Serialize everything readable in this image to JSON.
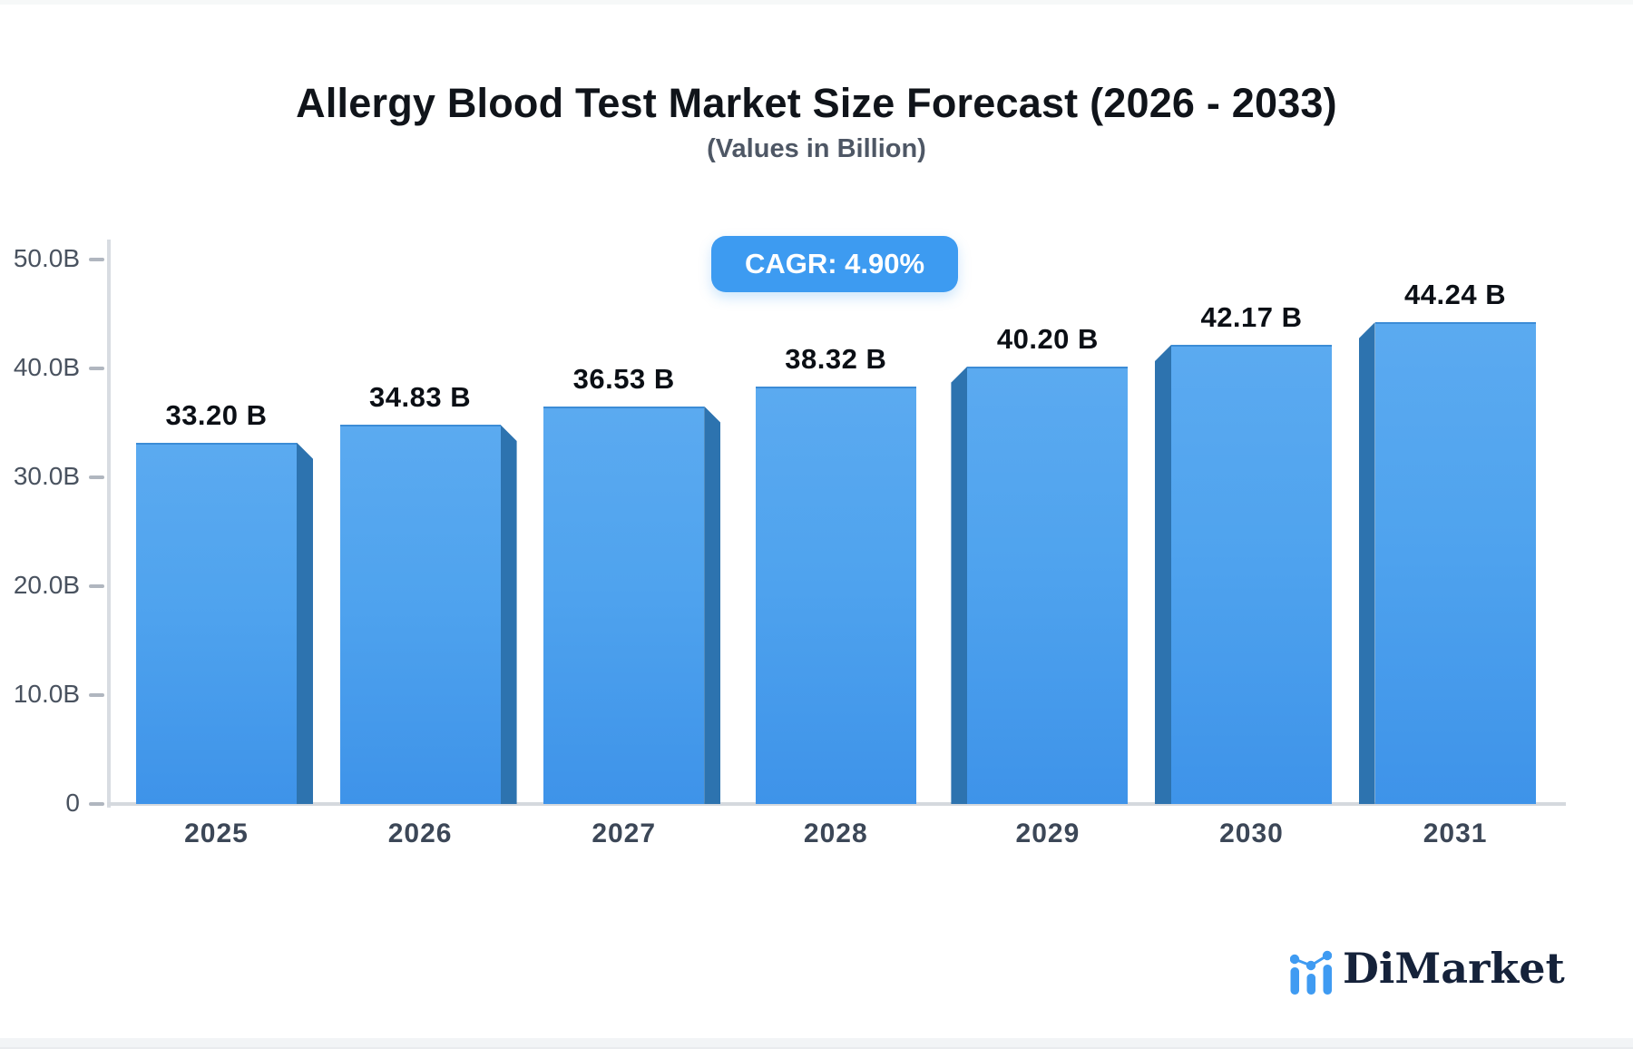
{
  "header": {
    "title": "Allergy Blood Test Market Size Forecast (2026 - 2033)",
    "subtitle": "(Values in Billion)",
    "cagr_badge": "CAGR: 4.90%"
  },
  "chart_data": {
    "type": "bar",
    "title": "Allergy Blood Test Market Size Forecast (2026 - 2033)",
    "subtitle": "(Values in Billion)",
    "annotation": "CAGR: 4.90%",
    "categories": [
      "2025",
      "2026",
      "2027",
      "2028",
      "2029",
      "2030",
      "2031"
    ],
    "values": [
      33.2,
      34.83,
      36.53,
      38.32,
      40.2,
      42.17,
      44.24
    ],
    "value_labels": [
      "33.20 B",
      "34.83 B",
      "36.53 B",
      "38.32 B",
      "40.20 B",
      "42.17 B",
      "44.24 B"
    ],
    "unit": "Billion",
    "ylim": [
      0,
      50
    ],
    "y_ticks": [
      {
        "label": "50.0B",
        "value": 50
      },
      {
        "label": "40.0B",
        "value": 40
      },
      {
        "label": "30.0B",
        "value": 30
      },
      {
        "label": "20.0B",
        "value": 20
      },
      {
        "label": "10.0B",
        "value": 10
      },
      {
        "label": "0",
        "value": 0
      }
    ],
    "grid": false,
    "legend": "none",
    "colors": {
      "bar_face_top": "#5baaf0",
      "bar_face_bottom": "#3e93e9",
      "bar_side": "#2d73af",
      "bar_top_edge": "#3c8cd6",
      "badge_background": "#3d9bf1",
      "axis_line": "#d8dce2",
      "tick": "#b0b6bf",
      "title_text": "#10141a",
      "label_text": "#3c4757"
    }
  },
  "footer": {
    "logo_text": "DiMarket",
    "logo_icon": "bar-chart-trend-icon",
    "logo_color": "#3f9bf2"
  }
}
